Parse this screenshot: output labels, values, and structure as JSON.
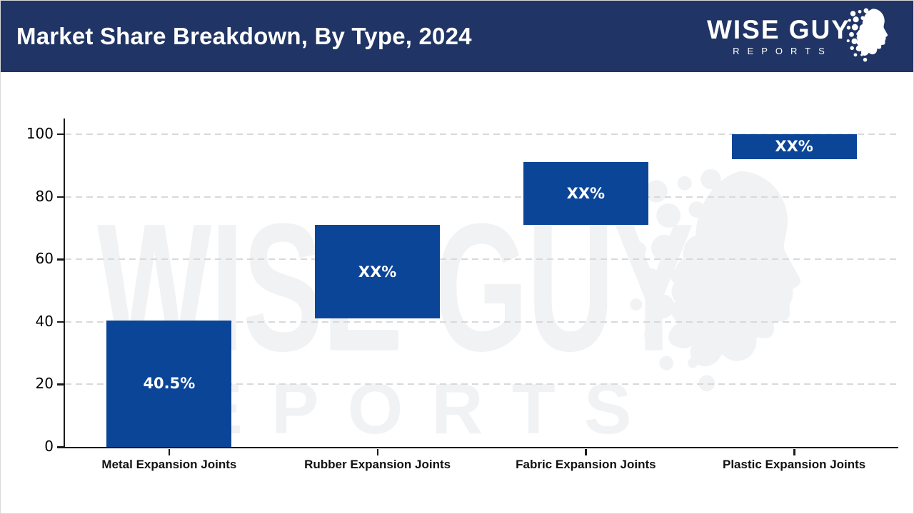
{
  "header": {
    "title": "Market Share Breakdown, By Type, 2024",
    "logo": {
      "wordmark": "WISE GUY",
      "subtext": "REPORTS"
    }
  },
  "watermark": {
    "wordmark": "WISE GUY",
    "subtext": "REPORTS"
  },
  "chart_data": {
    "type": "bar",
    "variant": "floating-segment-waterfall",
    "title": "Market Share Breakdown, By Type, 2024",
    "categories": [
      "Metal Expansion Joints",
      "Rubber Expansion Joints",
      "Fabric Expansion Joints",
      "Plastic Expansion Joints"
    ],
    "bars": [
      {
        "category": "Metal Expansion Joints",
        "start": 0,
        "end": 40.5,
        "label": "40.5%"
      },
      {
        "category": "Rubber Expansion Joints",
        "start": 41,
        "end": 71,
        "label": "XX%"
      },
      {
        "category": "Fabric Expansion Joints",
        "start": 71,
        "end": 91,
        "label": "XX%"
      },
      {
        "category": "Plastic Expansion Joints",
        "start": 92,
        "end": 100,
        "label": "XX%"
      }
    ],
    "xlabel": "",
    "ylabel": "",
    "yticks": [
      0,
      20,
      40,
      60,
      80,
      100
    ],
    "ylim": [
      0,
      105
    ],
    "grid": "horizontal-dashed",
    "legend": "none",
    "colors": {
      "bar": "#0b4598",
      "bar_label": "#ffffff",
      "grid": "#d9d9d9",
      "axis": "#1a1a1a",
      "header_bg": "#203565",
      "watermark": "#f1f2f4"
    }
  }
}
